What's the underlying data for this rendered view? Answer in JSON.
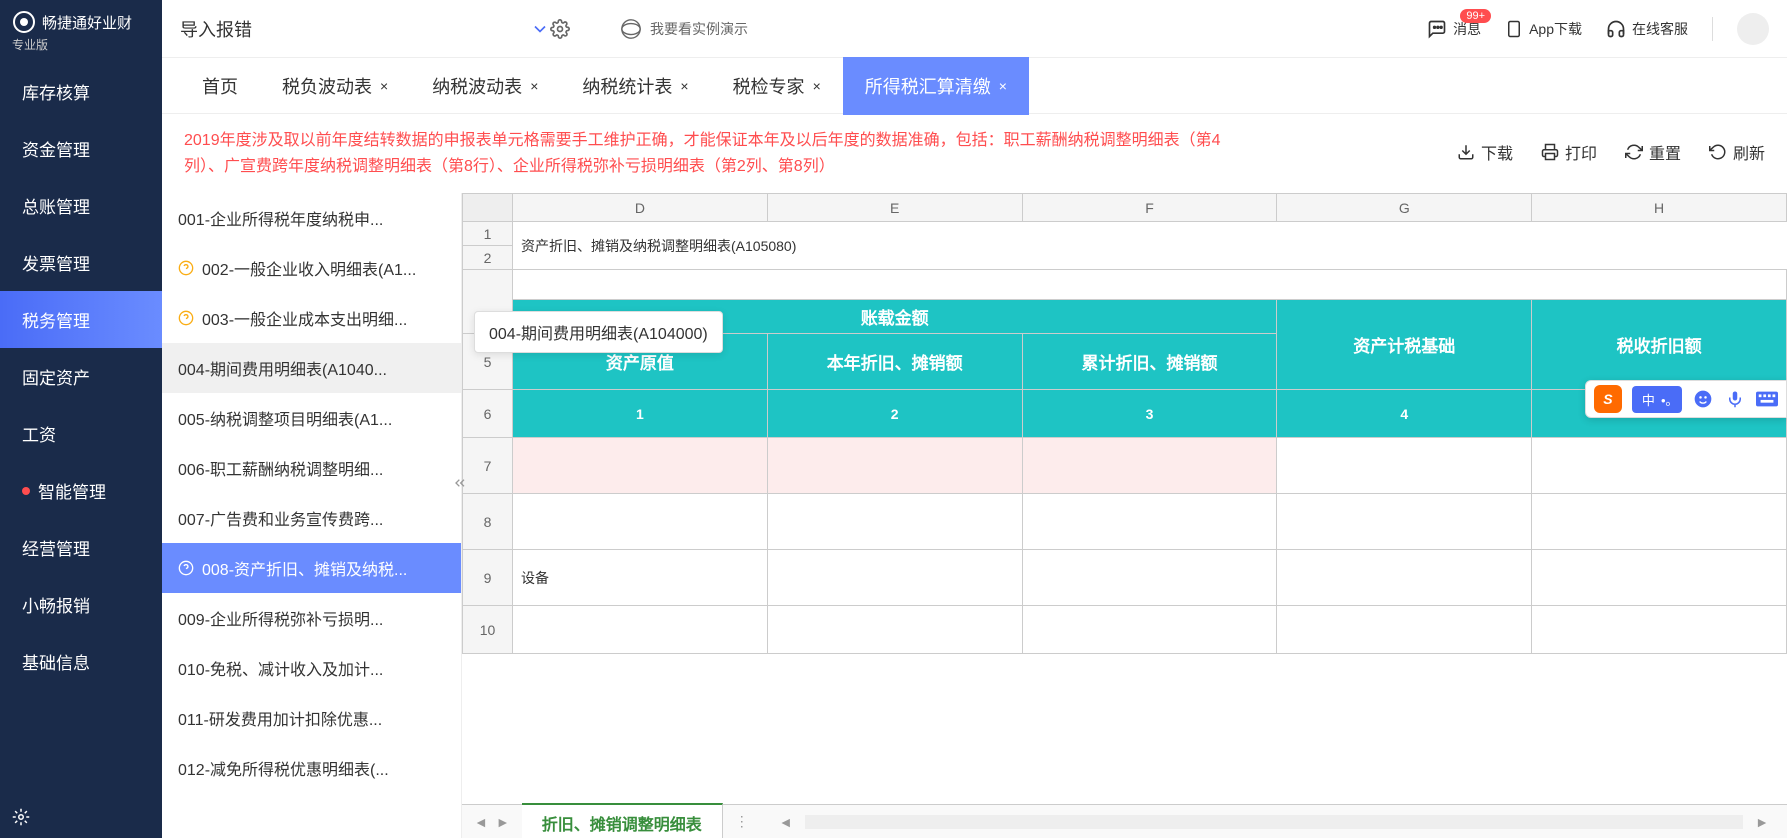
{
  "app": {
    "name": "畅捷通好业财",
    "edition": "专业版"
  },
  "sidebar": {
    "items": [
      {
        "label": "库存核算",
        "dot": false
      },
      {
        "label": "资金管理",
        "dot": false
      },
      {
        "label": "总账管理",
        "dot": false
      },
      {
        "label": "发票管理",
        "dot": false
      },
      {
        "label": "税务管理",
        "dot": false,
        "active": true
      },
      {
        "label": "固定资产",
        "dot": false
      },
      {
        "label": "工资",
        "dot": false
      },
      {
        "label": "智能管理",
        "dot": true
      },
      {
        "label": "经营管理",
        "dot": false
      },
      {
        "label": "小畅报销",
        "dot": false
      },
      {
        "label": "基础信息",
        "dot": false
      }
    ]
  },
  "topbar": {
    "select_label": "导入报错",
    "demo_label": "我要看实例演示",
    "actions": {
      "messages": "消息",
      "messages_badge": "99+",
      "app_download": "App下载",
      "support": "在线客服"
    }
  },
  "tabs": [
    {
      "label": "首页",
      "closable": false
    },
    {
      "label": "税负波动表",
      "closable": true
    },
    {
      "label": "纳税波动表",
      "closable": true
    },
    {
      "label": "纳税统计表",
      "closable": true
    },
    {
      "label": "税检专家",
      "closable": true
    },
    {
      "label": "所得税汇算清缴",
      "closable": true,
      "active": true
    }
  ],
  "notice": "2019年度涉及取以前年度结转数据的申报表单元格需要手工维护正确，才能保证本年及以后年度的数据准确，包括：职工薪酬纳税调整明细表（第4列）、广宣费跨年度纳税调整明细表（第8行）、企业所得税弥补亏损明细表（第2列、第8列）",
  "actions": {
    "download": "下载",
    "print": "打印",
    "reset": "重置",
    "refresh": "刷新"
  },
  "reports": [
    {
      "label": "001-企业所得税年度纳税申..."
    },
    {
      "label": "002-一般企业收入明细表(A1...",
      "icon": true
    },
    {
      "label": "003-一般企业成本支出明细...",
      "icon": true
    },
    {
      "label": "004-期间费用明细表(A1040...",
      "hovered": true
    },
    {
      "label": "005-纳税调整项目明细表(A1..."
    },
    {
      "label": "006-职工薪酬纳税调整明细..."
    },
    {
      "label": "007-广告费和业务宣传费跨..."
    },
    {
      "label": "008-资产折旧、摊销及纳税...",
      "icon": true,
      "selected": true
    },
    {
      "label": "009-企业所得税弥补亏损明..."
    },
    {
      "label": "010-免税、减计收入及加计..."
    },
    {
      "label": "011-研发费用加计扣除优惠..."
    },
    {
      "label": "012-减免所得税优惠明细表(..."
    }
  ],
  "tooltip": "004-期间费用明细表(A104000)",
  "sheet": {
    "title": "资产折旧、摊销及纳税调整明细表(A105080)",
    "columns": [
      "D",
      "E",
      "F",
      "G",
      "H"
    ],
    "row_nums": [
      "1",
      "2",
      "3",
      "4",
      "5",
      "6",
      "7",
      "8",
      "9",
      "10"
    ],
    "merged_header": "账载金额",
    "sub_headers": [
      "资产原值",
      "本年折旧、摊销额",
      "累计折旧、摊销额",
      "资产计税基础",
      "税收折旧额"
    ],
    "col_nums": [
      "1",
      "2",
      "3",
      "4"
    ],
    "row9_text": "设备",
    "tab_name": "折旧、摊销调整明细表"
  },
  "float": {
    "pill_text": "中"
  },
  "colors": {
    "sidebar_bg": "#1a2b4a",
    "primary": "#6a8cff",
    "teal": "#1ec4c4",
    "pink": "#fdecec",
    "notice": "#ff4d4f"
  }
}
